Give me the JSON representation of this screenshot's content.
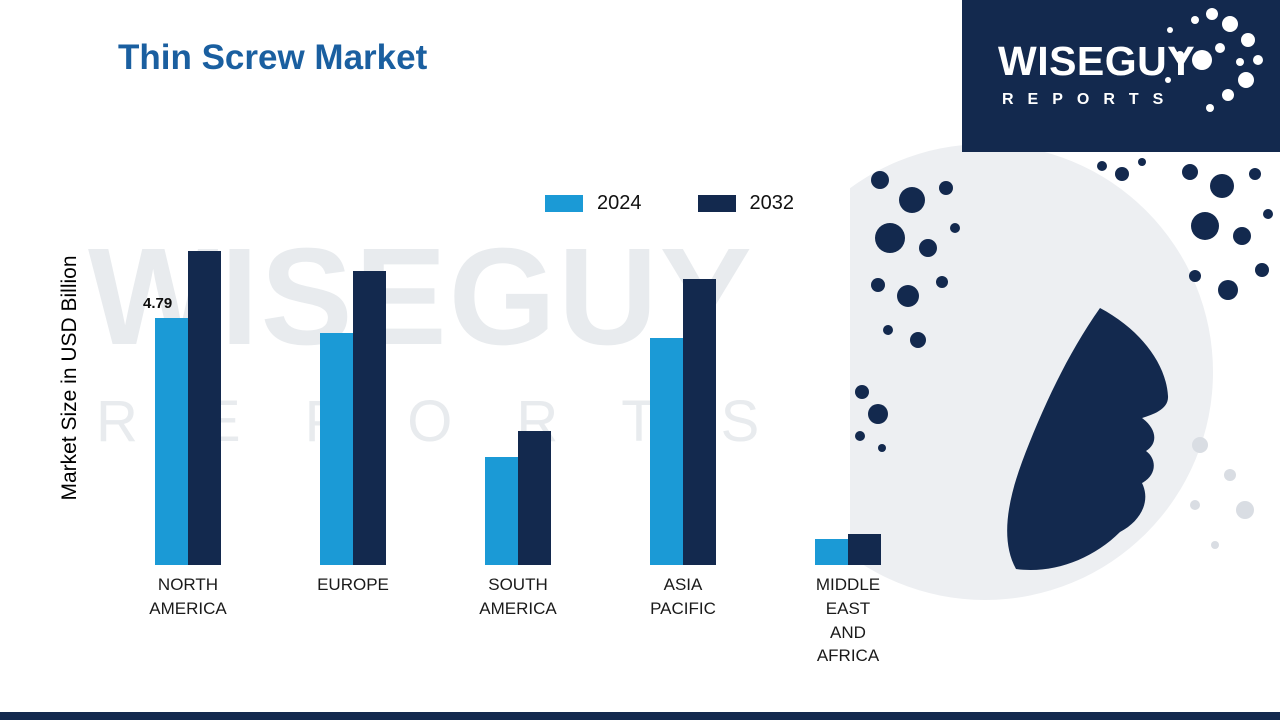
{
  "title": {
    "text": "Thin Screw Market",
    "color": "#1a5fa0"
  },
  "watermark": {
    "line1": "WISEGUY",
    "line2": "REPORTS"
  },
  "logo": {
    "line1": "WISEGUY",
    "line2": "REPORTS"
  },
  "colors": {
    "series_2024": "#1b9ad6",
    "series_2032": "#13294e",
    "title_blue": "#1a5fa0",
    "panel_navy": "#13294e",
    "background": "#ffffff",
    "watermark_gray": "#e8ebee"
  },
  "chart_data": {
    "type": "bar",
    "title": "Thin Screw Market",
    "xlabel": "",
    "ylabel": "Market Size in USD Billion",
    "units": "USD Billion",
    "ylim": [
      0,
      6.5
    ],
    "grid": false,
    "legend_position": "top",
    "categories": [
      "NORTH AMERICA",
      "EUROPE",
      "SOUTH AMERICA",
      "ASIA PACIFIC",
      "MIDDLE EAST AND AFRICA"
    ],
    "category_lines": [
      [
        "NORTH",
        "AMERICA"
      ],
      [
        "EUROPE"
      ],
      [
        "SOUTH",
        "AMERICA"
      ],
      [
        "ASIA",
        "PACIFIC"
      ],
      [
        "MIDDLE",
        "EAST",
        "AND",
        "AFRICA"
      ]
    ],
    "series": [
      {
        "name": "2024",
        "color": "#1b9ad6",
        "values": [
          4.79,
          4.5,
          2.1,
          4.4,
          0.5
        ]
      },
      {
        "name": "2032",
        "color": "#13294e",
        "values": [
          6.1,
          5.7,
          2.6,
          5.55,
          0.6
        ]
      }
    ],
    "data_labels": [
      {
        "series": "2024",
        "category_index": 0,
        "text": "4.79"
      }
    ]
  }
}
